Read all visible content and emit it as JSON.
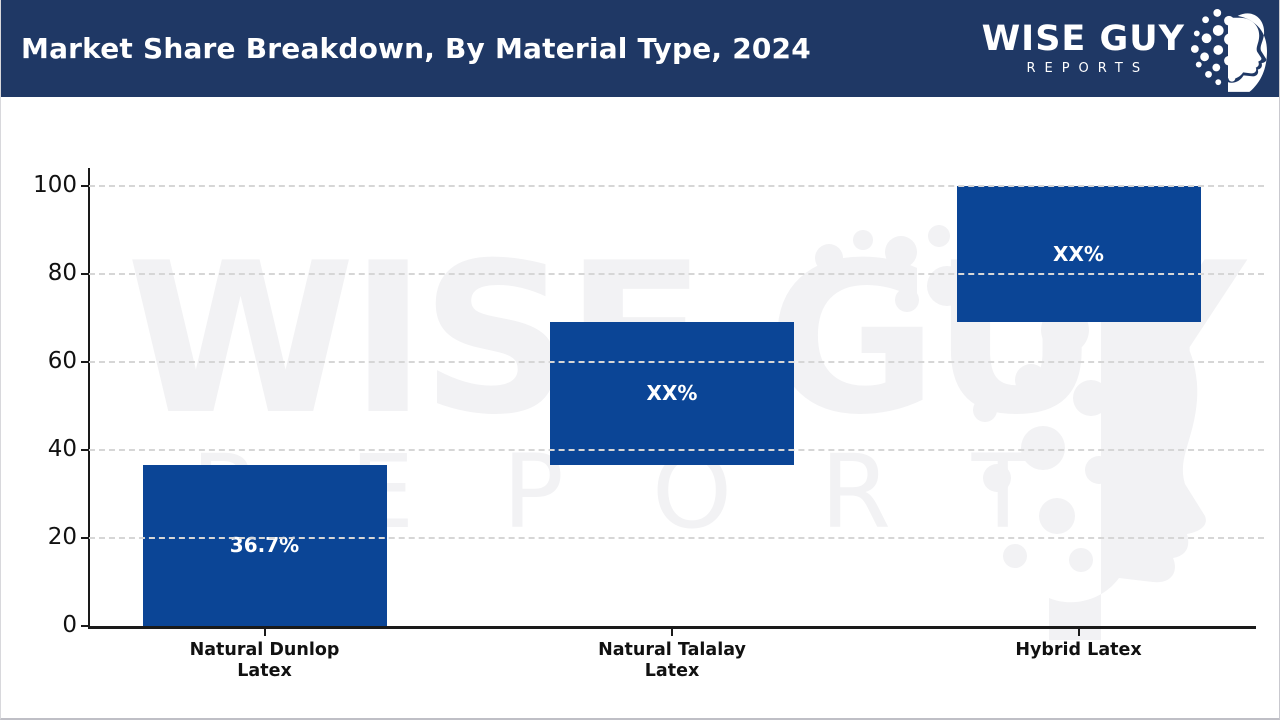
{
  "header": {
    "title": "Market Share Breakdown, By Material Type, 2024",
    "background_color": "#1f3865",
    "logo": {
      "line1": "WISE GUY",
      "line2": "REPORTS"
    }
  },
  "watermark": {
    "line1": "WISE GUY",
    "line2": "REPORTS"
  },
  "chart_data": {
    "type": "bar",
    "subtype": "floating-stacked-waterfall",
    "title": "Market Share Breakdown, By Material Type, 2024",
    "categories": [
      [
        "Natural Dunlop",
        "Latex"
      ],
      [
        "Natural Talalay",
        "Latex"
      ],
      [
        "Hybrid Latex"
      ]
    ],
    "segments": [
      {
        "category": "Natural Dunlop Latex",
        "start": 0,
        "end": 36.7,
        "label": "36.7%"
      },
      {
        "category": "Natural Talalay Latex",
        "start": 36.7,
        "end": 69.1,
        "label": "XX%"
      },
      {
        "category": "Hybrid Latex",
        "start": 69.1,
        "end": 100,
        "label": "XX%"
      }
    ],
    "yticks": [
      0,
      20,
      40,
      60,
      80,
      100
    ],
    "ylim": [
      0,
      100
    ],
    "xlabel": "",
    "ylabel": "",
    "grid": "dashed-horizontal",
    "legend": "none",
    "bar_color": "#0b4596",
    "grid_color": "#d6d6d6",
    "axis_color": "#1a1a1a",
    "bar_label_color": "#ffffff"
  }
}
